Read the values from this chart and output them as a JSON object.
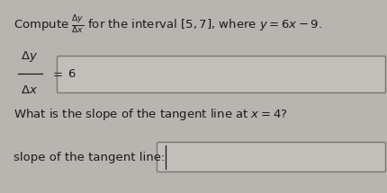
{
  "bg_color": "#b8b5b0",
  "text_color": "#1a1a1a",
  "title_line1": "Compute $\\frac{\\Delta y}{\\Delta x}$ for the interval $[5, 7]$, where $y = 6x - 9$.",
  "answer_value": "6",
  "question_line": "What is the slope of the tangent line at $x = 4$?",
  "label_slope": "slope of the tangent line:",
  "box_fill": "#c2bfba",
  "box_border": "#7a7772",
  "font_size_title": 9.5,
  "font_size_body": 9.5,
  "frac_label_dy": "$\\Delta y$",
  "frac_label_dx": "$\\Delta x$",
  "frac_label_eq": "$=$"
}
